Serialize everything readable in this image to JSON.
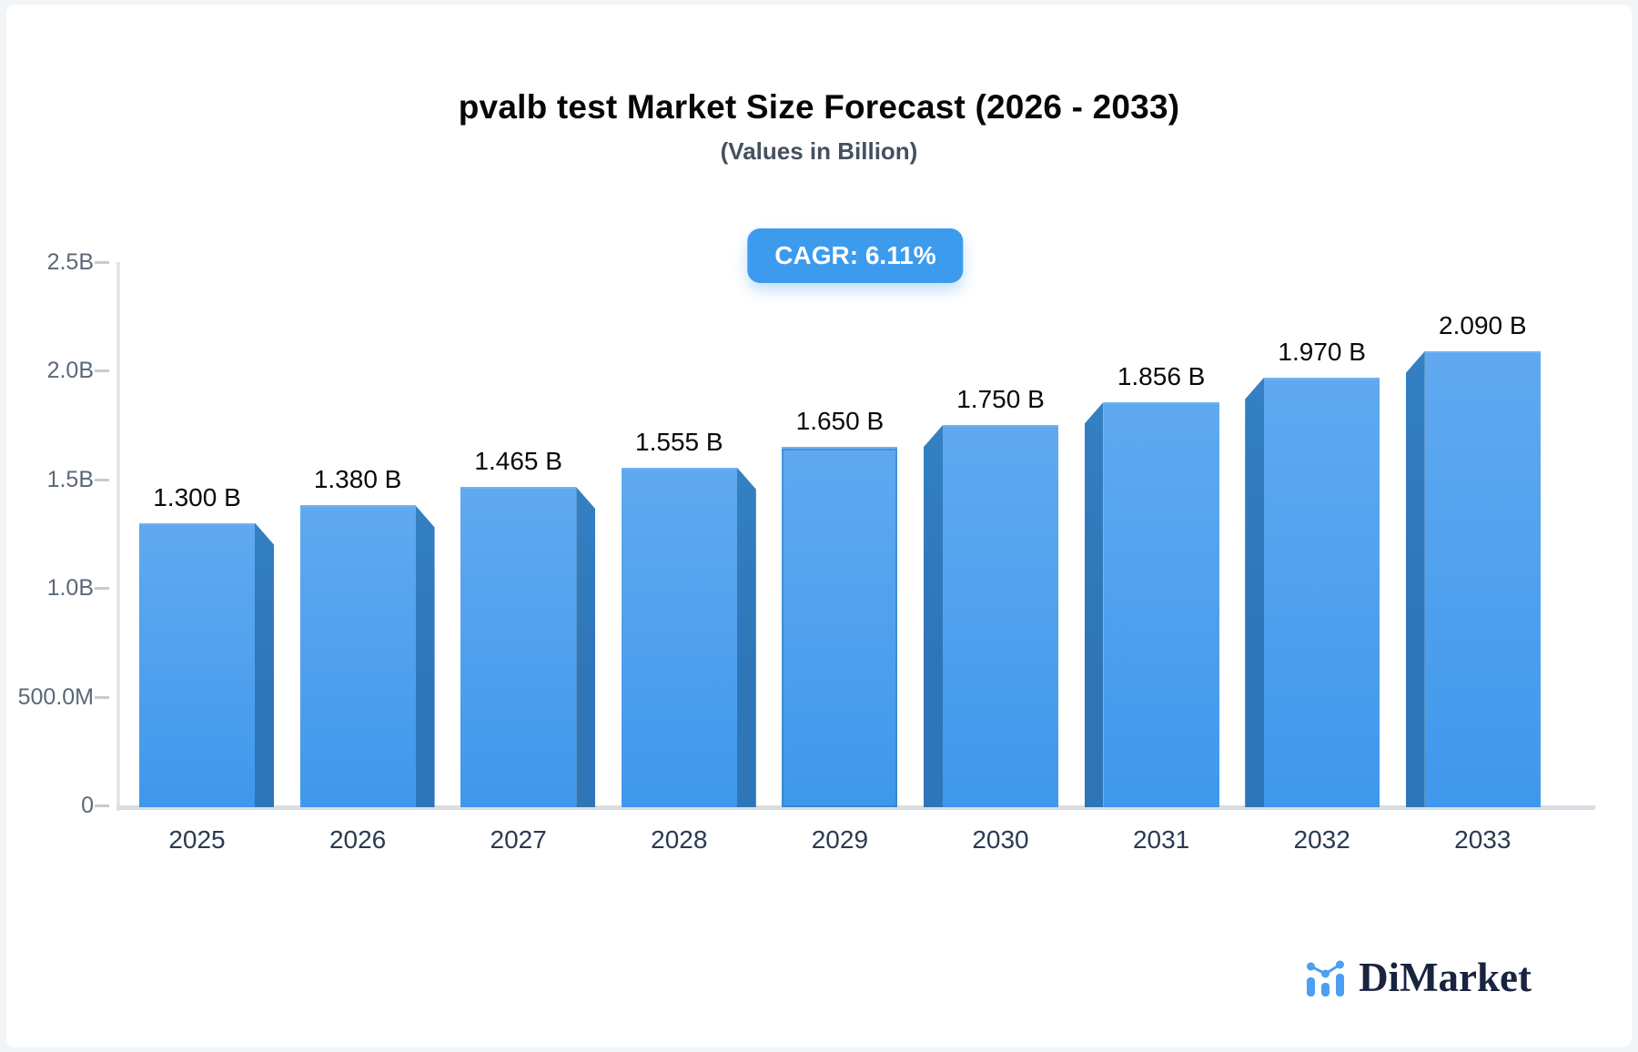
{
  "page": {
    "background": "#f2f5f8",
    "card_background": "#ffffff"
  },
  "header": {
    "title": "pvalb test Market Size Forecast (2026 - 2033)",
    "subtitle": "(Values in Billion)",
    "cagr_badge": "CAGR: 6.11%",
    "badge_color": "#3d9bed"
  },
  "chart_data": {
    "type": "bar",
    "title": "pvalb test Market Size Forecast (2026 - 2033)",
    "subtitle": "(Values in Billion)",
    "unit": "Billion",
    "categories": [
      "2025",
      "2026",
      "2027",
      "2028",
      "2029",
      "2030",
      "2031",
      "2032",
      "2033"
    ],
    "values": [
      1.3,
      1.38,
      1.465,
      1.555,
      1.65,
      1.75,
      1.856,
      1.97,
      2.09
    ],
    "value_labels": [
      "1.300 B",
      "1.380 B",
      "1.465 B",
      "1.555 B",
      "1.650 B",
      "1.750 B",
      "1.856 B",
      "1.970 B",
      "2.090 B"
    ],
    "ylim": [
      0,
      2.5
    ],
    "y_ticks": [
      {
        "label": "0",
        "value": 0.0
      },
      {
        "label": "500.0M",
        "value": 0.5
      },
      {
        "label": "1.0B",
        "value": 1.0
      },
      {
        "label": "1.5B",
        "value": 1.5
      },
      {
        "label": "2.0B",
        "value": 2.0
      },
      {
        "label": "2.5B",
        "value": 2.5
      }
    ],
    "grid": false,
    "legend": false,
    "bar_style": "3d-block",
    "bar_colors": {
      "face_top": "#60a9f0",
      "face_bottom": "#3f98ec",
      "side": "#2e76b8"
    }
  },
  "footer": {
    "brand": "DiMarket",
    "brand_color": "#1a2440",
    "logo_icon": "bar-chart-trend-icon",
    "logo_blue": "#4aa0f2"
  }
}
